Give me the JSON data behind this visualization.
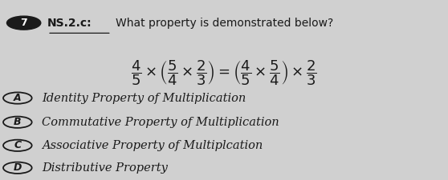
{
  "background_color": "#d0d0d0",
  "title_number": "7",
  "standard": "NS.2.c:",
  "question": "What property is demonstrated below?",
  "choices": [
    {
      "letter": "A",
      "text": "Identity Property of Multiplication"
    },
    {
      "letter": "B",
      "text": "Commutative Property of Multiplication"
    },
    {
      "letter": "C",
      "text": "Associative Property of Multiplcation"
    },
    {
      "letter": "D",
      "text": "Distributive Property"
    }
  ],
  "text_color": "#1a1a1a",
  "font_size_question": 10,
  "font_size_equation": 13,
  "font_size_choices": 10.5
}
